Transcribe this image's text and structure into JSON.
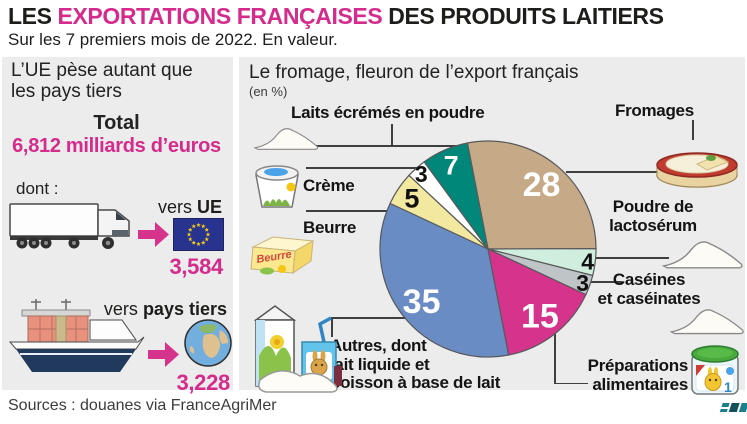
{
  "page": {
    "title_prefix": "LES ",
    "title_highlight": "EXPORTATIONS FRANÇAISES",
    "title_suffix": " DES PRODUITS LAITIERS",
    "subtitle": "Sur les 7 premiers mois de 2022. En valeur.",
    "source": "Sources : douanes via FranceAgriMer",
    "accent_color": "#d42b8c"
  },
  "left_panel": {
    "heading": "L’UE pèse autant que\nles pays tiers",
    "total_label": "Total",
    "total_value": "6,812 milliards d’euros",
    "dont_label": "dont :",
    "eu": {
      "prefix": "vers ",
      "dest": "UE",
      "value": "3,584"
    },
    "tiers": {
      "prefix": "vers ",
      "dest": "pays tiers",
      "value": "3,228"
    }
  },
  "right_panel": {
    "heading": "Le fromage, fleuron de l’export français",
    "unit_note": "(en %)",
    "labels": {
      "laits": "Laits écrémés en poudre",
      "creme": "Crème",
      "beurre": "Beurre",
      "fromages": "Fromages",
      "poudre": "Poudre de\nlactosérum",
      "caseines": "Caséines\net caséinates",
      "preparations": "Préparations\nalimentaires",
      "autres": "Autres, dont\nlait liquide et\nboisson à base de lait"
    },
    "butter_pack_text": "Beurre",
    "can_text": "1"
  },
  "chart_data": {
    "type": "pie",
    "title": "Le fromage, fleuron de l’export français",
    "unit": "en %",
    "start_angle_deg": -11,
    "legend_position": "around",
    "slices": [
      {
        "label": "Fromages",
        "value": 28,
        "color": "#c6aa87",
        "label_color": "#ffffff"
      },
      {
        "label": "Poudre de lactosérum",
        "value": 4,
        "color": "#cfeedd",
        "label_color": "#111111"
      },
      {
        "label": "Caséines et caséinates",
        "value": 3,
        "color": "#bfc5c6",
        "label_color": "#111111"
      },
      {
        "label": "Préparations alimentaires",
        "value": 15,
        "color": "#d5338c",
        "label_color": "#ffffff"
      },
      {
        "label": "Autres, dont lait liquide et boisson à base de lait",
        "value": 35,
        "color": "#6a8cc5",
        "label_color": "#ffffff"
      },
      {
        "label": "Beurre",
        "value": 5,
        "color": "#f2e89f",
        "label_color": "#111111"
      },
      {
        "label": "Crème",
        "value": 3,
        "color": "#ffffff",
        "label_color": "#111111"
      },
      {
        "label": "Laits écrémés en poudre",
        "value": 7,
        "color": "#00877a",
        "label_color": "#ffffff"
      }
    ]
  }
}
